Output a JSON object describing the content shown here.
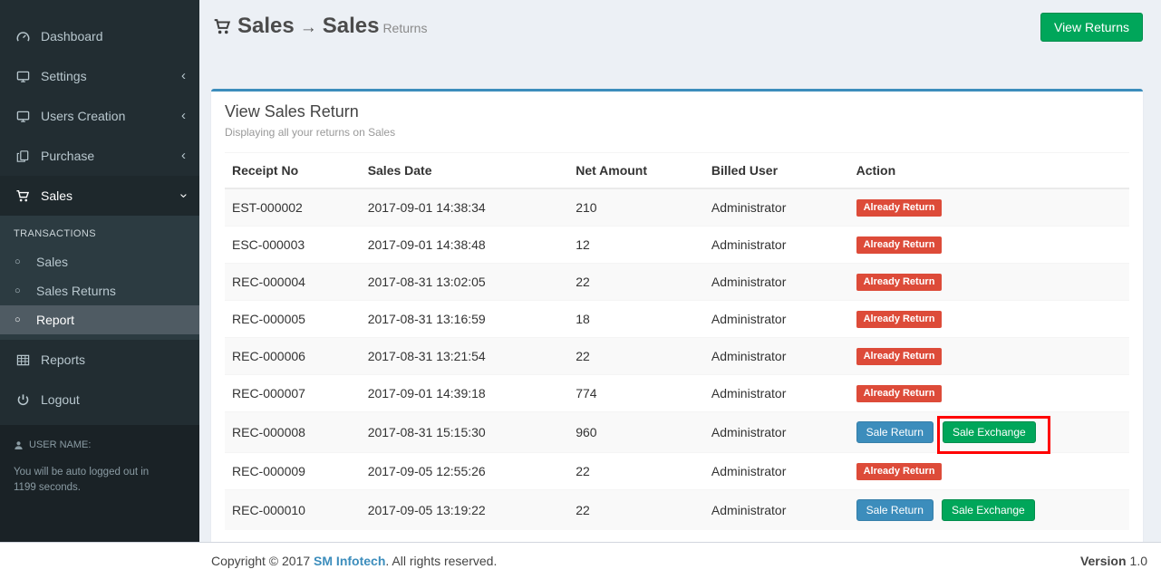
{
  "colors": {
    "top_accent": "#00bcd4",
    "primary_blue": "#3c8dbc",
    "success_green": "#00a65a",
    "danger_red": "#dd4b39",
    "annotation_red": "#ff0000",
    "sidebar_bg": "#222d32"
  },
  "icons": {
    "submenu_bullet": "○",
    "chevron_collapsed": "‹",
    "chevron_expanded": "›",
    "breadcrumb_arrow": "→"
  },
  "sidebar": {
    "items": [
      {
        "label": "Dashboard",
        "icon": "dashboard-icon"
      },
      {
        "label": "Settings",
        "icon": "monitor-icon",
        "chevron": "left"
      },
      {
        "label": "Users Creation",
        "icon": "monitor-icon",
        "chevron": "left"
      },
      {
        "label": "Purchase",
        "icon": "copy-icon",
        "chevron": "left"
      },
      {
        "label": "Sales",
        "icon": "cart-icon",
        "chevron": "down",
        "active": true
      }
    ],
    "section_header": "TRANSACTIONS",
    "submenu": [
      {
        "label": "Sales",
        "highlighted": false
      },
      {
        "label": "Sales Returns",
        "highlighted": false
      },
      {
        "label": "Report",
        "highlighted": true
      }
    ],
    "bottom_items": [
      {
        "label": "Reports",
        "icon": "table-icon"
      },
      {
        "label": "Logout",
        "icon": "power-icon"
      }
    ],
    "user_label": "USER NAME:",
    "auto_logout_notice": "You will be auto logged out in 1199 seconds."
  },
  "header": {
    "title_primary": "Sales",
    "title_secondary": "Sales",
    "title_sub": "Returns",
    "action_button": "View Returns"
  },
  "panel": {
    "title": "View Sales Return",
    "subtitle": "Displaying all your returns on Sales"
  },
  "table": {
    "columns": [
      "Receipt No",
      "Sales Date",
      "Net Amount",
      "Billed User",
      "Action"
    ],
    "action_labels": {
      "already_return": "Already Return",
      "sale_return": "Sale Return",
      "sale_exchange": "Sale Exchange"
    },
    "rows": [
      {
        "receipt_no": "EST-000002",
        "sales_date": "2017-09-01 14:38:34",
        "net_amount": "210",
        "billed_user": "Administrator",
        "actions": [
          "already_return"
        ],
        "highlight_exchange": false
      },
      {
        "receipt_no": "ESC-000003",
        "sales_date": "2017-09-01 14:38:48",
        "net_amount": "12",
        "billed_user": "Administrator",
        "actions": [
          "already_return"
        ],
        "highlight_exchange": false
      },
      {
        "receipt_no": "REC-000004",
        "sales_date": "2017-08-31 13:02:05",
        "net_amount": "22",
        "billed_user": "Administrator",
        "actions": [
          "already_return"
        ],
        "highlight_exchange": false
      },
      {
        "receipt_no": "REC-000005",
        "sales_date": "2017-08-31 13:16:59",
        "net_amount": "18",
        "billed_user": "Administrator",
        "actions": [
          "already_return"
        ],
        "highlight_exchange": false
      },
      {
        "receipt_no": "REC-000006",
        "sales_date": "2017-08-31 13:21:54",
        "net_amount": "22",
        "billed_user": "Administrator",
        "actions": [
          "already_return"
        ],
        "highlight_exchange": false
      },
      {
        "receipt_no": "REC-000007",
        "sales_date": "2017-09-01 14:39:18",
        "net_amount": "774",
        "billed_user": "Administrator",
        "actions": [
          "already_return"
        ],
        "highlight_exchange": false
      },
      {
        "receipt_no": "REC-000008",
        "sales_date": "2017-08-31 15:15:30",
        "net_amount": "960",
        "billed_user": "Administrator",
        "actions": [
          "sale_return",
          "sale_exchange"
        ],
        "highlight_exchange": true
      },
      {
        "receipt_no": "REC-000009",
        "sales_date": "2017-09-05 12:55:26",
        "net_amount": "22",
        "billed_user": "Administrator",
        "actions": [
          "already_return"
        ],
        "highlight_exchange": false
      },
      {
        "receipt_no": "REC-000010",
        "sales_date": "2017-09-05 13:19:22",
        "net_amount": "22",
        "billed_user": "Administrator",
        "actions": [
          "sale_return",
          "sale_exchange"
        ],
        "highlight_exchange": false
      }
    ]
  },
  "footer": {
    "copyright_prefix": "Copyright © 2017",
    "company": "SM Infotech",
    "copyright_suffix": ". All rights reserved.",
    "version_label": "Version",
    "version_value": "1.0"
  }
}
